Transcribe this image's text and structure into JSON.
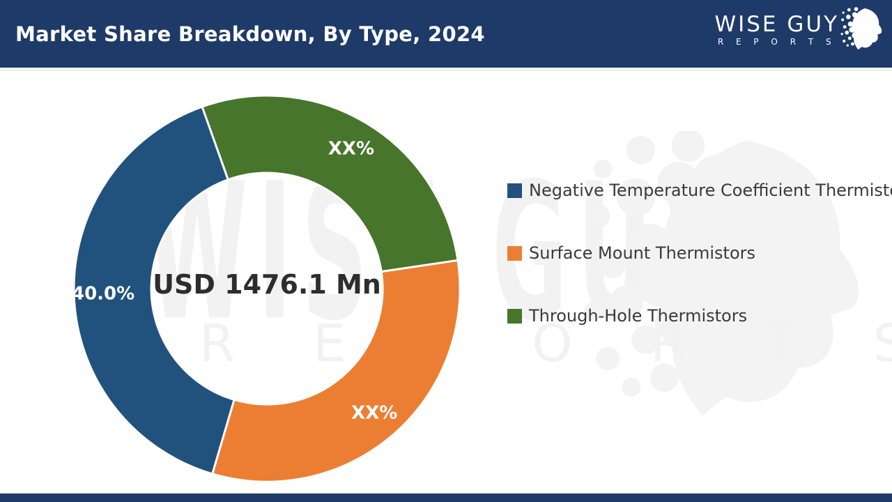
{
  "header": {
    "title": "Market Share Breakdown, By Type, 2024",
    "bg_color": "#1e3a68",
    "logo": {
      "line1": "WISE GUY",
      "line2": "R E P O R T S"
    }
  },
  "chart_data": {
    "type": "pie",
    "donut": true,
    "title": "Market Share Breakdown, By Type, 2024",
    "center_label": "USD 1476.1 Mn",
    "start_angle_deg": 196.4,
    "legend_position": "right",
    "slices": [
      {
        "label": "Negative Temperature Coefficient Thermistors",
        "pct": 40.0,
        "value_label": "40.0%",
        "color": "#21527e"
      },
      {
        "label": "Through-Hole Thermistors",
        "pct": 28.1,
        "value_label": "XX%",
        "color": "#46752b"
      },
      {
        "label": "Surface Mount Thermistors",
        "pct": 31.9,
        "value_label": "XX%",
        "color": "#ec7e33"
      }
    ]
  },
  "legend": {
    "items": [
      {
        "label": "Negative Temperature Coefficient Thermistors",
        "color": "#21527e"
      },
      {
        "label": "Surface Mount Thermistors",
        "color": "#ec7e33"
      },
      {
        "label": "Through-Hole Thermistors",
        "color": "#46752b"
      }
    ]
  },
  "watermark": {
    "big_text": "WISE GUY",
    "small_text": "R E P O R T S"
  },
  "footer": {
    "bg_color": "#1e3a68"
  }
}
